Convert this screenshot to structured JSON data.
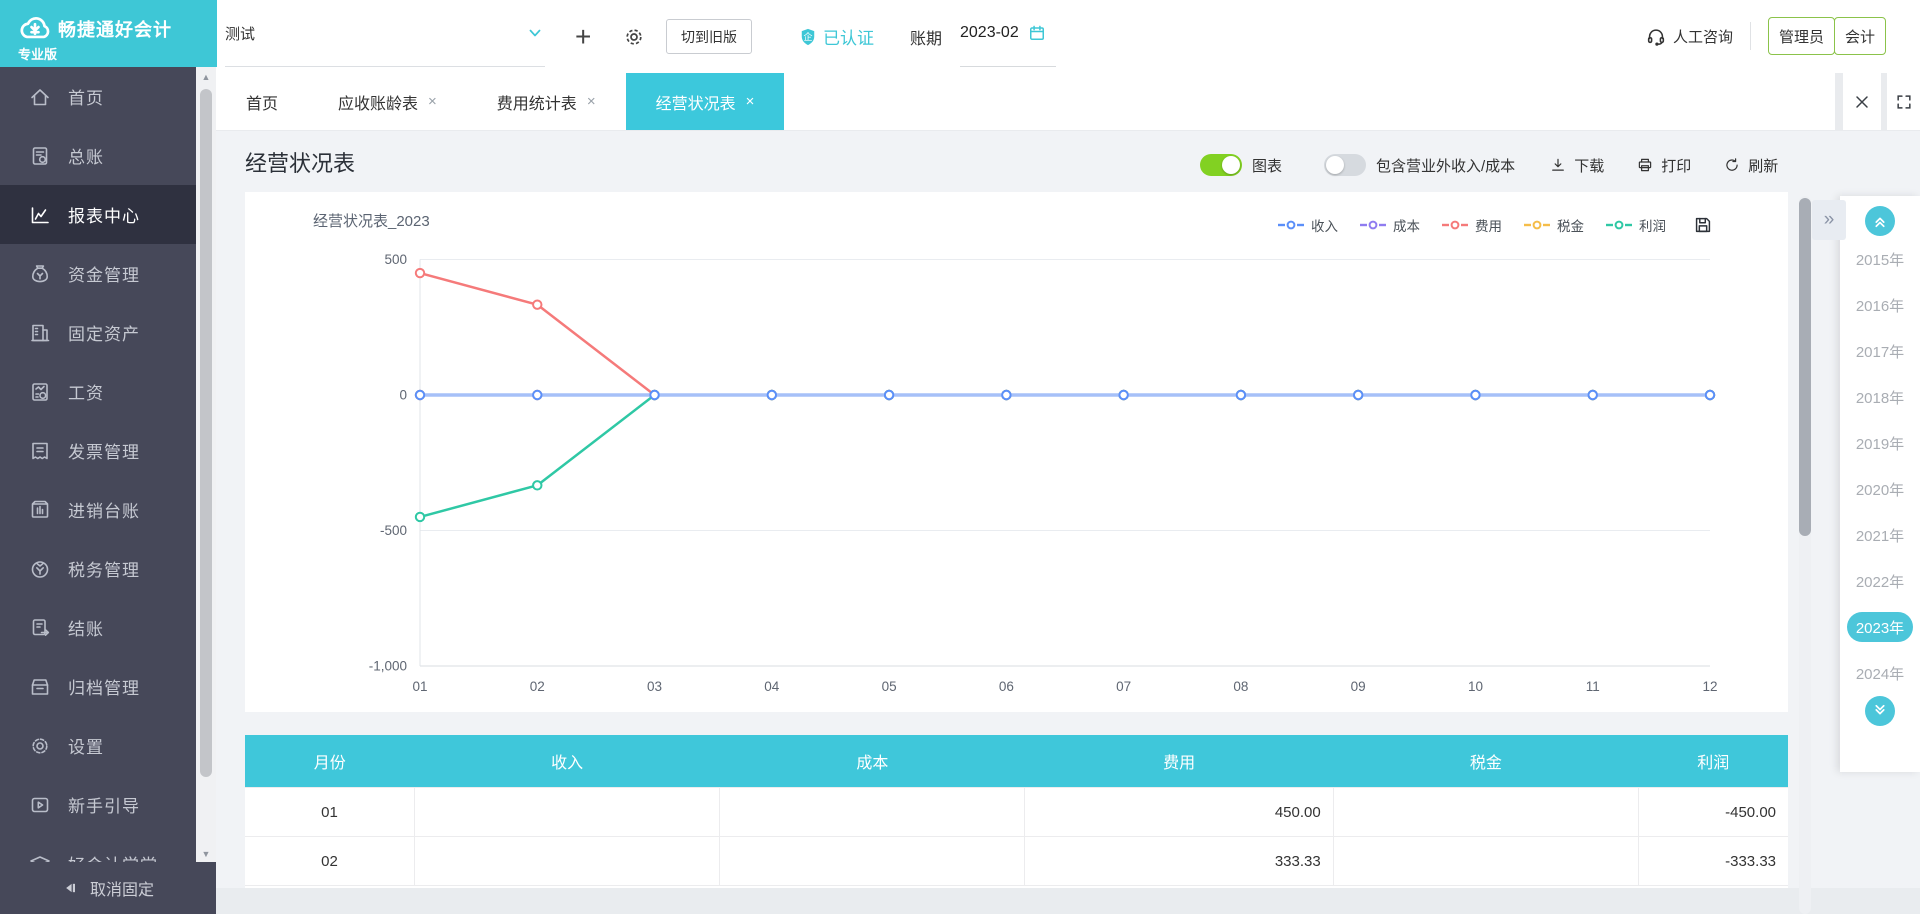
{
  "colors": {
    "accent": "#3ec7d6",
    "sidebar_bg": "#464859",
    "sidebar_active_bg": "#2f3140",
    "toggle_on": "#82d122",
    "role_button_border": "#8bc34a",
    "table_header_bg": "#3fc7da"
  },
  "topbar": {
    "logo_title": "畅捷通好会计",
    "logo_edition": "专业版",
    "company": "测试",
    "plus_glyph": "+",
    "switch_version": "切到旧版",
    "certified": "已认证",
    "certified_glyph": "企",
    "period_label": "账期",
    "period_value": "2023-02",
    "support": "人工咨询",
    "roles": [
      "管理员",
      "会计"
    ]
  },
  "sidebar": {
    "items": [
      {
        "label": "首页",
        "icon": "home-icon",
        "active": false
      },
      {
        "label": "总账",
        "icon": "general-ledger-icon",
        "active": false
      },
      {
        "label": "报表中心",
        "icon": "report-center-icon",
        "active": true
      },
      {
        "label": "资金管理",
        "icon": "funds-icon",
        "active": false
      },
      {
        "label": "固定资产",
        "icon": "fixed-assets-icon",
        "active": false
      },
      {
        "label": "工资",
        "icon": "salary-icon",
        "active": false
      },
      {
        "label": "发票管理",
        "icon": "invoice-icon",
        "active": false
      },
      {
        "label": "进销台账",
        "icon": "purchase-sales-icon",
        "active": false
      },
      {
        "label": "税务管理",
        "icon": "tax-icon",
        "active": false
      },
      {
        "label": "结账",
        "icon": "closing-icon",
        "active": false
      },
      {
        "label": "归档管理",
        "icon": "archive-icon",
        "active": false
      },
      {
        "label": "设置",
        "icon": "settings-icon",
        "active": false
      },
      {
        "label": "新手引导",
        "icon": "guide-icon",
        "active": false
      },
      {
        "label": "好会计学堂",
        "icon": "academy-icon",
        "active": false,
        "clipped": true
      }
    ],
    "footer_label": "取消固定"
  },
  "tabbar": {
    "close_glyph": "×",
    "tabs": [
      {
        "label": "首页",
        "closable": false,
        "active": false
      },
      {
        "label": "应收账龄表",
        "closable": true,
        "active": false
      },
      {
        "label": "费用统计表",
        "closable": true,
        "active": false
      },
      {
        "label": "经营状况表",
        "closable": true,
        "active": true
      }
    ]
  },
  "toolbar": {
    "page_title": "经营状况表",
    "chart_toggle_label": "图表",
    "chart_toggle_on": true,
    "include_toggle_label": "包含营业外收入/成本",
    "include_toggle_on": false,
    "actions": [
      {
        "label": "下载",
        "icon": "download-icon"
      },
      {
        "label": "打印",
        "icon": "print-icon"
      },
      {
        "label": "刷新",
        "icon": "refresh-icon"
      }
    ]
  },
  "chart_card": {
    "title": "经营状况表_2023"
  },
  "chart_data": {
    "type": "line",
    "title": "经营状况表_2023",
    "x": [
      "01",
      "02",
      "03",
      "04",
      "05",
      "06",
      "07",
      "08",
      "09",
      "10",
      "11",
      "12"
    ],
    "series": [
      {
        "name": "收入",
        "color": "#5b8ff9",
        "line_color": "#a6c0f8",
        "width": 3.5,
        "values": [
          0,
          0,
          0,
          0,
          0,
          0,
          0,
          0,
          0,
          0,
          0,
          0
        ]
      },
      {
        "name": "成本",
        "color": "#8f7cf0",
        "values": [
          0,
          0,
          0,
          0,
          0,
          0,
          0,
          0,
          0,
          0,
          0,
          0
        ]
      },
      {
        "name": "费用",
        "color": "#f57a7a",
        "values": [
          450,
          333.33,
          0,
          0,
          0,
          0,
          0,
          0,
          0,
          0,
          0,
          0
        ]
      },
      {
        "name": "税金",
        "color": "#f5bd49",
        "values": [
          0,
          0,
          0,
          0,
          0,
          0,
          0,
          0,
          0,
          0,
          0,
          0
        ]
      },
      {
        "name": "利润",
        "color": "#2fc8a5",
        "values": [
          -450,
          -333.33,
          0,
          0,
          0,
          0,
          0,
          0,
          0,
          0,
          0,
          0
        ]
      }
    ],
    "ylim": [
      -1000,
      500
    ],
    "yticks": [
      {
        "v": 500,
        "label": "500"
      },
      {
        "v": 0,
        "label": "0"
      },
      {
        "v": -500,
        "label": "-500"
      },
      {
        "v": -1000,
        "label": "-1,000"
      }
    ],
    "grid": true,
    "legend_position": "top-right"
  },
  "table": {
    "headers": [
      "月份",
      "收入",
      "成本",
      "费用",
      "税金",
      "利润"
    ],
    "col_widths": [
      "11%",
      "19.8%",
      "19.8%",
      "20%",
      "19.8%",
      "9.7%"
    ],
    "rows": [
      [
        "01",
        "",
        "",
        "450.00",
        "",
        "-450.00"
      ],
      [
        "02",
        "",
        "",
        "333.33",
        "",
        "-333.33"
      ]
    ]
  },
  "year_panel": {
    "years": [
      "2015年",
      "2016年",
      "2017年",
      "2018年",
      "2019年",
      "2020年",
      "2021年",
      "2022年",
      "2023年",
      "2024年"
    ],
    "selected": "2023年"
  }
}
